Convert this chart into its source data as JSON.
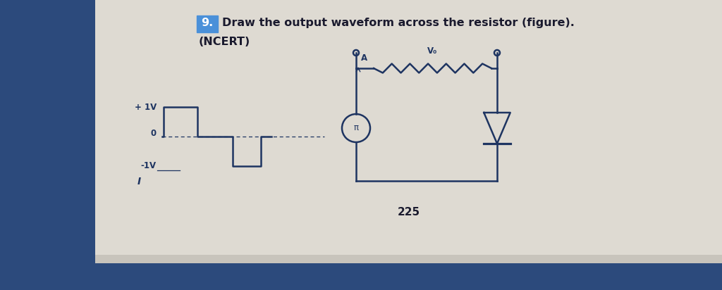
{
  "title_line1": "Draw the output waveform across the resistor (figure).",
  "title_line2": "(NCERT)",
  "page_number": "225",
  "bg_color": "#dedad2",
  "text_color": "#1a1a2e",
  "circuit_color": "#1e3461",
  "highlight_color": "#4a90d9",
  "title_fontsize": 11.5,
  "page_fontsize": 11,
  "fig_width": 10.24,
  "fig_height": 4.12,
  "label_plus1v": "+ 1V",
  "label_minus1v": "-1V",
  "label_zero": "0",
  "label_I": "I",
  "label_A": "A",
  "label_Vo": "V₀",
  "label_pi": "π"
}
